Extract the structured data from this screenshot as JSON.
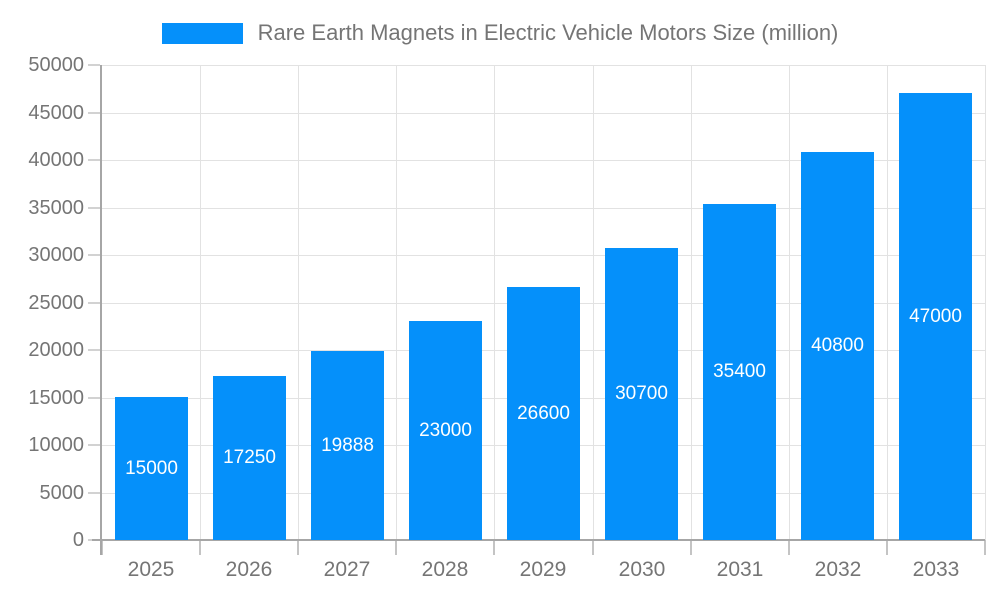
{
  "legend": {
    "label": "Rare Earth Magnets in Electric Vehicle Motors Size (million)",
    "swatch_color": "#0590fa"
  },
  "chart_data": {
    "type": "bar",
    "title": "Rare Earth Magnets in Electric Vehicle Motors Size (million)",
    "categories": [
      "2025",
      "2026",
      "2027",
      "2028",
      "2029",
      "2030",
      "2031",
      "2032",
      "2033"
    ],
    "values": [
      15000,
      17250,
      19888,
      23000,
      26600,
      30700,
      35400,
      40800,
      47000
    ],
    "xlabel": "",
    "ylabel": "",
    "ylim": [
      0,
      50000
    ],
    "ytick_step": 5000,
    "ytick_labels": [
      "0",
      "5000",
      "10000",
      "15000",
      "20000",
      "25000",
      "30000",
      "35000",
      "40000",
      "45000",
      "50000"
    ],
    "grid": true,
    "legend_position": "top",
    "bar_color": "#0590fa",
    "value_label_color": "#ffffff",
    "axis_text_color": "#757575"
  },
  "style": {
    "background": "#ffffff",
    "axis_line_color": "#a6a6a6",
    "grid_color": "#e2e2e2"
  }
}
